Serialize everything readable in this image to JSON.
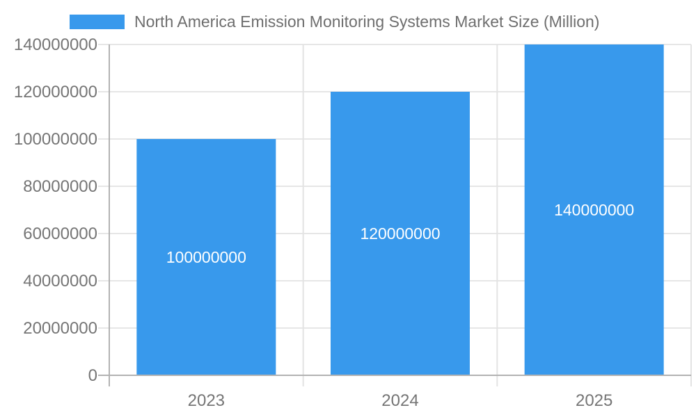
{
  "chart_data": {
    "type": "bar",
    "title": "North America Emission Monitoring Systems Market Size (Million)",
    "categories": [
      "2023",
      "2024",
      "2025"
    ],
    "values": [
      100000000,
      120000000,
      140000000
    ],
    "bar_labels": [
      "100000000",
      "120000000",
      "140000000"
    ],
    "xlabel": "",
    "ylabel": "",
    "ylim": [
      0,
      140000000
    ],
    "ytick_step": 20000000,
    "ytick_labels": [
      "0",
      "20000000",
      "40000000",
      "60000000",
      "80000000",
      "100000000",
      "120000000",
      "140000000"
    ],
    "grid": true,
    "legend_position": "top-left",
    "colors": {
      "bar": "#3899EC",
      "bar_label_text": "#FFFFFF",
      "axis_text": "#757575",
      "title_text": "#6E6E6E",
      "gridline": "#E6E6E6",
      "category_line": "#E3E3E3",
      "axis_line": "#B2B2B2",
      "background": "#FFFFFF"
    }
  }
}
